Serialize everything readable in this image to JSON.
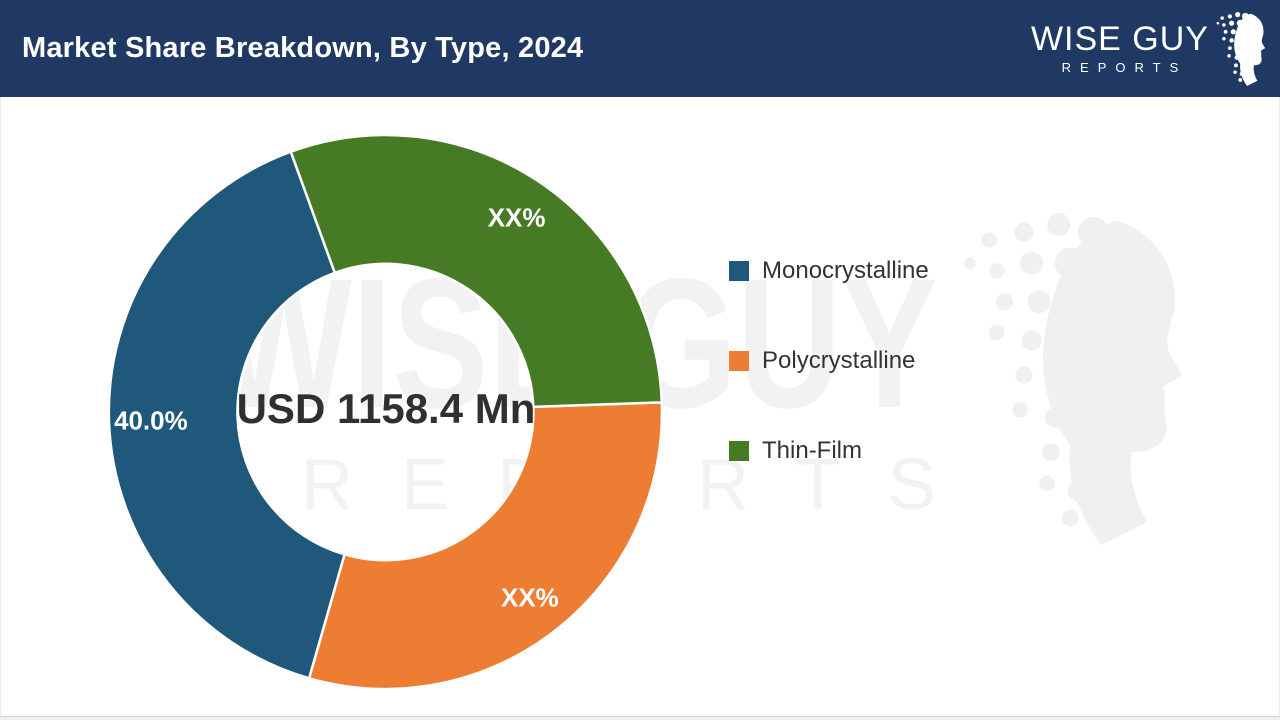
{
  "header": {
    "title": "Market Share Breakdown, By Type, 2024"
  },
  "brand": {
    "line1": "WISE GUY",
    "line2": "REPORTS"
  },
  "chart_data": {
    "type": "pie",
    "subtype": "donut",
    "title": "Market Share Breakdown, By Type, 2024",
    "center_label": "USD 1158.4 Mn",
    "start_angle_deg": 110,
    "direction": "counterclockwise",
    "donut_hole_ratio": 0.535,
    "legend_position": "right",
    "categories": [
      "Monocrystalline",
      "Polycrystalline",
      "Thin-Film"
    ],
    "values": [
      40.0,
      30.0,
      30.0
    ],
    "segments": [
      {
        "label": "Monocrystalline",
        "value_pct": 40.0,
        "display_label": "40.0%",
        "color": "#20587C"
      },
      {
        "label": "Polycrystalline",
        "value_pct": 30.0,
        "display_label": "XX%",
        "color": "#EC7D33"
      },
      {
        "label": "Thin-Film",
        "value_pct": 30.0,
        "display_label": "XX%",
        "color": "#477A24"
      }
    ]
  },
  "theme": {
    "header_bg": "#203864",
    "header_text": "#ffffff",
    "slice_separator": "#ffffff",
    "slice_label_text": "#ffffff",
    "center_text": "#303030",
    "legend_text": "#333333",
    "watermark": "#f2f2f2",
    "bottom_border": "#d5d5d5"
  }
}
